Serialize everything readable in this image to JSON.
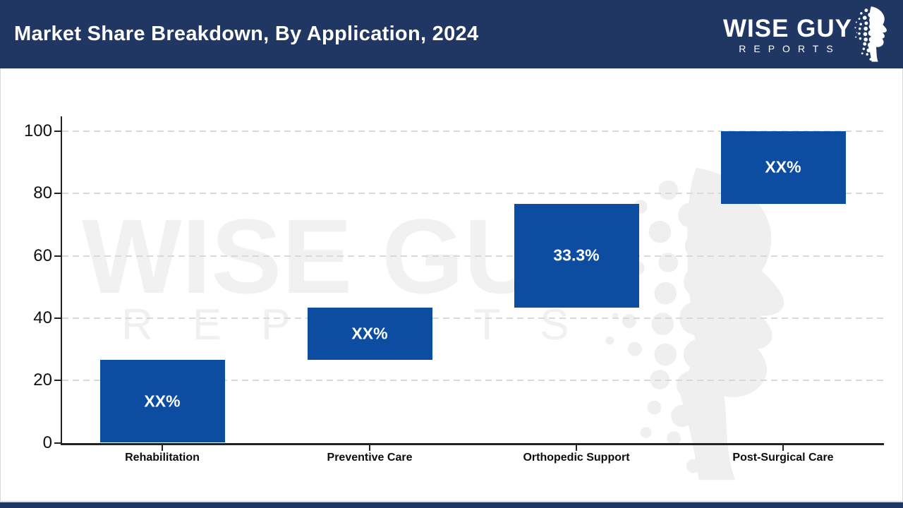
{
  "header": {
    "title": "Market Share Breakdown, By Application, 2024",
    "logo": {
      "name": "WISE GUY",
      "subname": "REPORTS"
    }
  },
  "watermark": {
    "line1": "WISE GUY",
    "line2": "REPORTS"
  },
  "footer": {},
  "chart_data": {
    "type": "bar",
    "subtype": "floating-waterfall-segments",
    "title": "Market Share Breakdown, By Application, 2024",
    "categories": [
      "Rehabilitation",
      "Preventive Care",
      "Orthopedic Support",
      "Post-Surgical Care"
    ],
    "segments": [
      {
        "category": "Rehabilitation",
        "start": 0,
        "end": 26.7,
        "label": "XX%"
      },
      {
        "category": "Preventive Care",
        "start": 26.7,
        "end": 43.4,
        "label": "XX%"
      },
      {
        "category": "Orthopedic Support",
        "start": 43.4,
        "end": 76.7,
        "label": "33.3%"
      },
      {
        "category": "Post-Surgical Care",
        "start": 76.7,
        "end": 100,
        "label": "XX%"
      }
    ],
    "yticks": [
      0,
      20,
      40,
      60,
      80,
      100
    ],
    "ylim": [
      0,
      104
    ],
    "xlabel": "",
    "ylabel": "",
    "grid": "horizontal-dashed",
    "legend": "none"
  },
  "colors": {
    "header_bg": "#203763",
    "footer_bg": "#203763",
    "bar": "#0C4DA2",
    "bar_label": "#ffffff",
    "axis": "#222222",
    "grid": "#d9d9d9",
    "tick_text": "#111111",
    "watermark": "#f0f0f0"
  }
}
